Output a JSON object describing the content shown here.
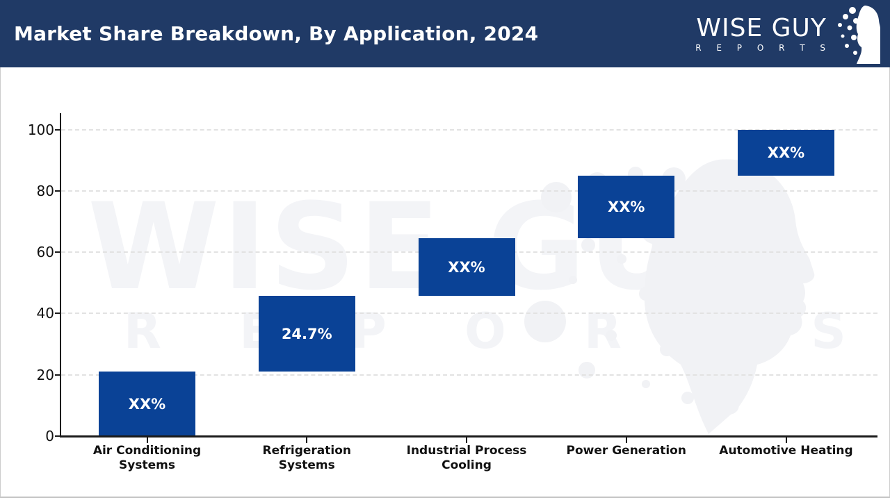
{
  "header": {
    "title": "Market Share Breakdown, By Application, 2024",
    "bg_color": "#203a66",
    "logo": {
      "line1": "WISE GUY",
      "line2": "R E P O R T S"
    }
  },
  "watermark": {
    "line1": "WISE GUY",
    "line2": "R E P O R T S"
  },
  "chart_data": {
    "type": "bar",
    "subtype": "floating-waterfall",
    "title": "Market Share Breakdown, By Application, 2024",
    "xlabel": "",
    "ylabel": "",
    "ylim": [
      0,
      100
    ],
    "yticks": [
      0,
      20,
      40,
      60,
      80,
      100
    ],
    "grid": "horizontal-dashed",
    "legend": "none",
    "bar_color": "#0a4296",
    "bar_label_color": "#ffffff",
    "categories": [
      "Air Conditioning Systems",
      "Refrigeration Systems",
      "Industrial Process Cooling",
      "Power Generation",
      "Automotive Heating"
    ],
    "bars": [
      {
        "category": "Air Conditioning\nSystems",
        "start": 0,
        "end": 21,
        "label": "XX%"
      },
      {
        "category": "Refrigeration\nSystems",
        "start": 21,
        "end": 45.7,
        "label": "24.7%"
      },
      {
        "category": "Industrial Process\nCooling",
        "start": 45.7,
        "end": 64.5,
        "label": "XX%"
      },
      {
        "category": "Power Generation",
        "start": 64.5,
        "end": 85,
        "label": "XX%"
      },
      {
        "category": "Automotive Heating",
        "start": 85,
        "end": 100,
        "label": "XX%"
      }
    ]
  }
}
